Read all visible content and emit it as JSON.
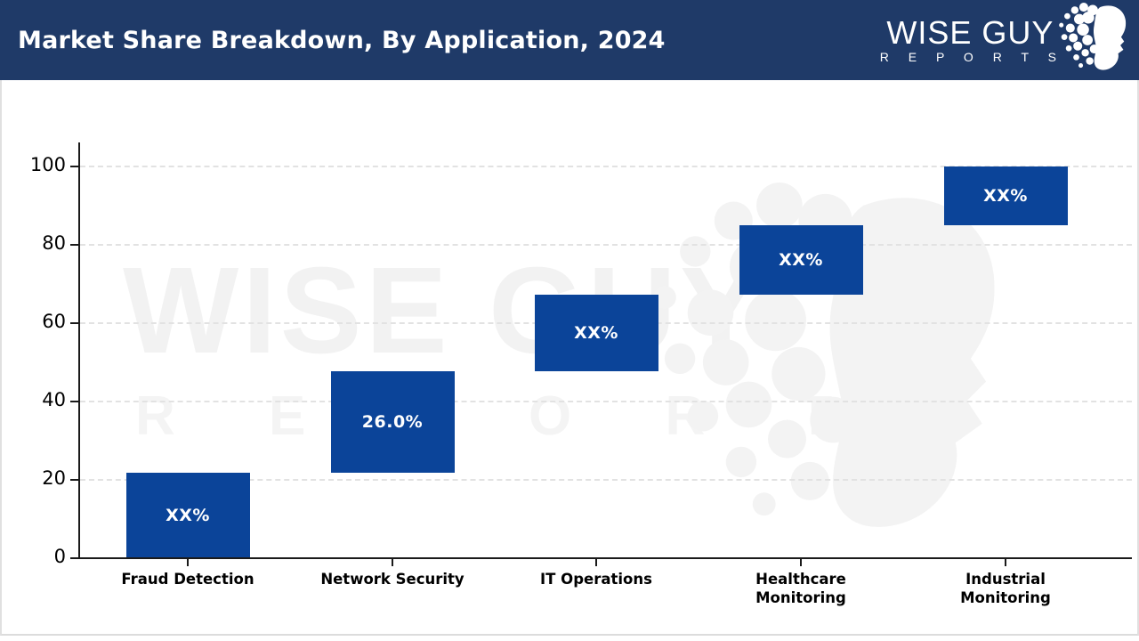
{
  "header": {
    "title": "Market Share Breakdown, By Application, 2024",
    "logo": {
      "line1": "WISE GUY",
      "line2": "R E P O R T S"
    }
  },
  "watermark": {
    "line1": "WISE GUY",
    "line2": "R E P O R T S"
  },
  "colors": {
    "header_bg": "#1f3a68",
    "bar": "#0b4499",
    "bar_label": "#ffffff",
    "grid": "#e2e2e2",
    "axis": "#1a1a1a",
    "watermark": "#f2f2f2"
  },
  "chart_data": {
    "type": "bar",
    "subtype": "floating-segment-waterfall",
    "title": "Market Share Breakdown, By Application, 2024",
    "xlabel": "",
    "ylabel": "",
    "ylim": [
      0,
      107
    ],
    "yticks": [
      0,
      20,
      40,
      60,
      80,
      100
    ],
    "grid": "horizontal-dashed",
    "legend": "none",
    "categories": [
      "Fraud Detection",
      "Network Security",
      "IT Operations",
      "Healthcare Monitoring",
      "Industrial Monitoring"
    ],
    "category_label_lines": [
      [
        "Fraud Detection"
      ],
      [
        "Network Security"
      ],
      [
        "IT Operations"
      ],
      [
        "Healthcare",
        "Monitoring"
      ],
      [
        "Industrial",
        "Monitoring"
      ]
    ],
    "segments": [
      {
        "category": "Fraud Detection",
        "start": 0,
        "end": 21.8,
        "value": 21.8,
        "label": "XX%"
      },
      {
        "category": "Network Security",
        "start": 21.8,
        "end": 47.8,
        "value": 26.0,
        "label": "26.0%"
      },
      {
        "category": "IT Operations",
        "start": 47.8,
        "end": 67.3,
        "value": 19.5,
        "label": "XX%"
      },
      {
        "category": "Healthcare Monitoring",
        "start": 67.3,
        "end": 85.0,
        "value": 17.7,
        "label": "XX%"
      },
      {
        "category": "Industrial Monitoring",
        "start": 85.0,
        "end": 100.0,
        "value": 15.0,
        "label": "XX%"
      }
    ]
  }
}
